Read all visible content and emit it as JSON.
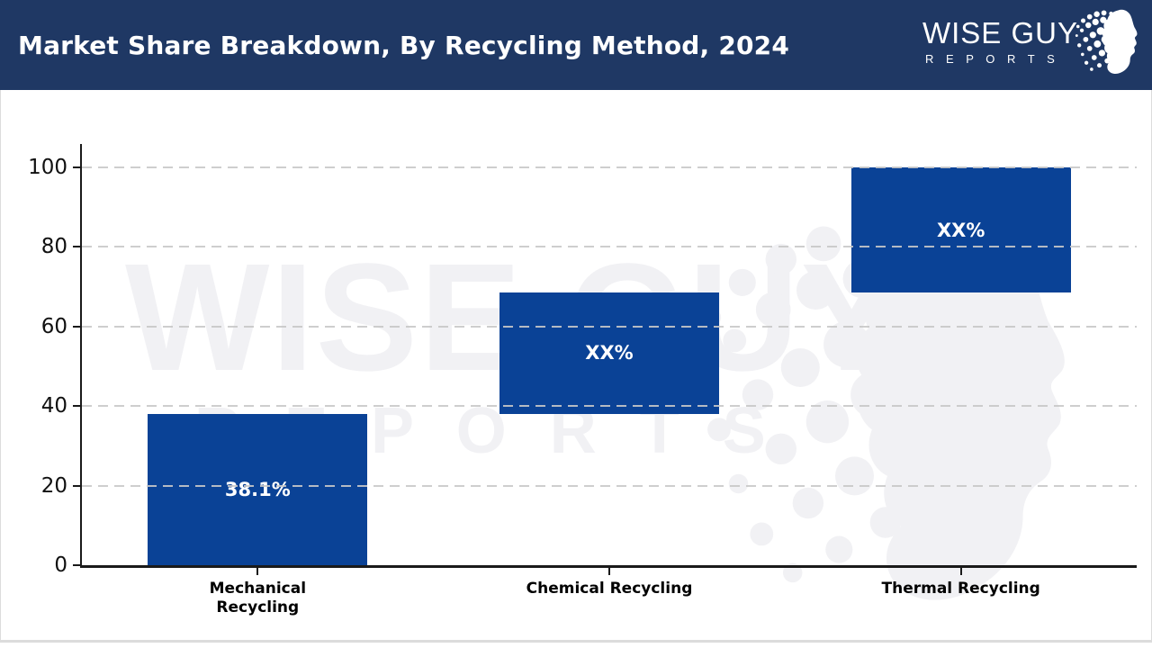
{
  "header": {
    "title": "Market Share Breakdown, By Recycling Method, 2024",
    "logo": {
      "line1": "WISE GUY",
      "line2": "R E P O R T S"
    }
  },
  "watermark": {
    "line1": "WISE GUY",
    "line2": "R E P O R T S"
  },
  "theme": {
    "header_bg": "#1f3864",
    "header_text": "#ffffff",
    "watermark": "#f1f1f4"
  },
  "chart_data": {
    "type": "bar",
    "subtype": "waterfall",
    "title": "Market Share Breakdown, By Recycling Method, 2024",
    "categories": [
      "Mechanical\nRecycling",
      "Chemical Recycling",
      "Thermal Recycling"
    ],
    "bars": [
      {
        "category": "Mechanical Recycling",
        "label": "38.1%",
        "start": 0,
        "end": 38.1
      },
      {
        "category": "Chemical Recycling",
        "label": "XX%",
        "start": 38.1,
        "end": 68.5
      },
      {
        "category": "Thermal Recycling",
        "label": "XX%",
        "start": 68.5,
        "end": 100
      }
    ],
    "yticks": [
      0,
      20,
      40,
      60,
      80,
      100
    ],
    "ylim": [
      0,
      105.9
    ],
    "xlabel": "",
    "ylabel": "",
    "grid": "dashed-horizontal",
    "legend": "none",
    "colors": {
      "bar": "#0a4296",
      "label": "#ffffff",
      "axis": "#1a1a1a",
      "grid": "#c8c8c8"
    }
  }
}
